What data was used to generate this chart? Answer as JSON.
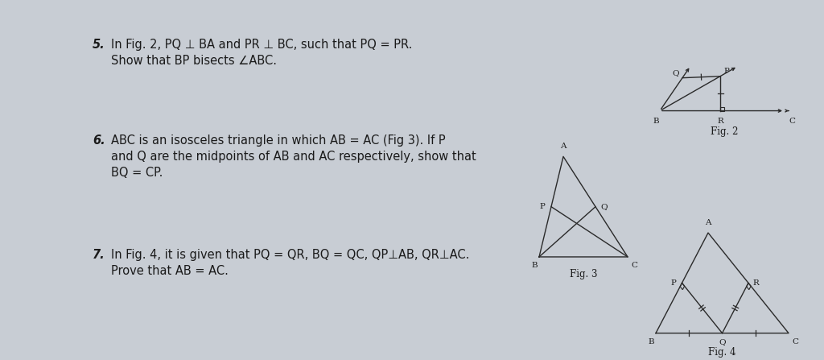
{
  "background_color": "#c8cdd4",
  "text_color": "#1a1a1a",
  "fig_line_color": "#2a2a2a",
  "problems": [
    {
      "number": "5.",
      "line1": "In Fig. 2, PQ ⊥ BA and PR ⊥ BC, such that PQ = PR.",
      "line2": "Show that BP bisects ∠ABC."
    },
    {
      "number": "6.",
      "line1": "ABC is an isosceles triangle in which AB = AC (Fig 3). If P",
      "line2": "and Q are the midpoints of AB and AC respectively, show that",
      "line3": "BQ = CP."
    },
    {
      "number": "7.",
      "line1": "In Fig. 4, it is given that PQ = QR, BQ = QC, QP⊥AB, QR⊥AC.",
      "line2": "Prove that AB = AC."
    }
  ],
  "font_size_problem": 10.5,
  "font_size_fig_label": 8.5,
  "fig2_ox": 0.795,
  "fig2_oy": 0.62,
  "fig2_sc": 0.19,
  "fig3_ox": 0.622,
  "fig3_oy": 0.24,
  "fig3_sc": 0.175,
  "fig4_ox": 0.755,
  "fig4_oy": 0.03,
  "fig4_sc": 0.175
}
